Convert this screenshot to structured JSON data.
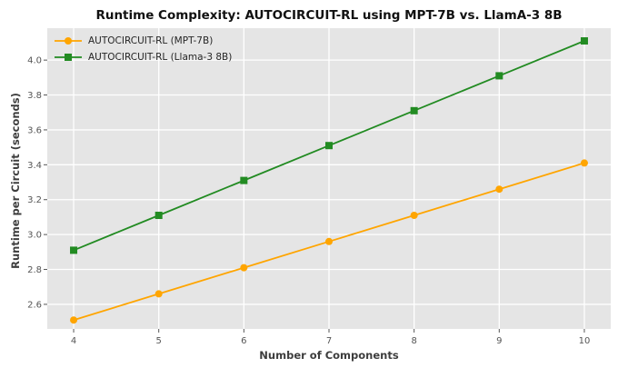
{
  "chart_data": {
    "type": "line",
    "title": "Runtime Complexity: AUTOCIRCUIT-RL using MPT-7B vs. LlamA-3 8B",
    "xlabel": "Number of Components",
    "ylabel": "Runtime per Circuit (seconds)",
    "x": [
      4,
      5,
      6,
      7,
      8,
      9,
      10
    ],
    "series": [
      {
        "name": "AUTOCIRCUIT-RL (MPT-7B)",
        "color": "#FFA500",
        "marker": "circle",
        "values": [
          2.51,
          2.66,
          2.81,
          2.96,
          3.11,
          3.26,
          3.41
        ]
      },
      {
        "name": "AUTOCIRCUIT-RL (Llama-3 8B)",
        "color": "#228B22",
        "marker": "square",
        "values": [
          2.91,
          3.11,
          3.31,
          3.51,
          3.71,
          3.91,
          4.11
        ]
      }
    ],
    "xticks": [
      4,
      5,
      6,
      7,
      8,
      9,
      10
    ],
    "yticks": [
      2.6,
      2.8,
      3.0,
      3.2,
      3.4,
      3.6,
      3.8,
      4.0
    ],
    "xlim": [
      3.69,
      10.31
    ],
    "ylim": [
      2.459,
      4.183
    ],
    "grid": true,
    "legend_position": "upper left",
    "plot_bg_color": "#e5e5e5",
    "grid_color": "#ffffff",
    "tick_label_color": "#555555"
  }
}
